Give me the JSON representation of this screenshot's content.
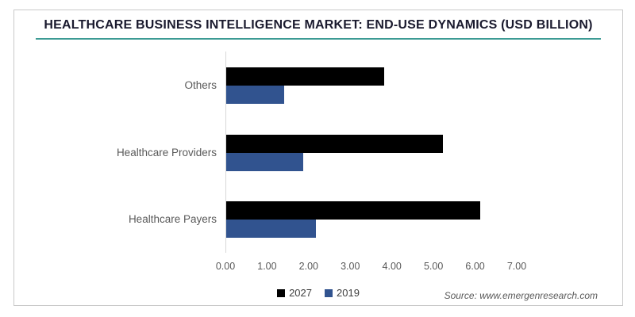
{
  "title": "HEALTHCARE BUSINESS INTELLIGENCE MARKET: END-USE DYNAMICS (USD BILLION)",
  "source": "Source: www.emergenresearch.com",
  "colors": {
    "title_text": "#1a1a2e",
    "title_underline": "#3d9b94",
    "series_2027": "#000000",
    "series_2019": "#31538f",
    "axis_line": "#d9d9d9",
    "muted_text": "#595959",
    "card_border": "#c9c9c9"
  },
  "legend": [
    {
      "label": "2027",
      "color": "#000000"
    },
    {
      "label": "2019",
      "color": "#31538f"
    }
  ],
  "chart_data": {
    "type": "bar",
    "orientation": "horizontal",
    "title": "HEALTHCARE BUSINESS INTELLIGENCE MARKET: END-USE DYNAMICS (USD BILLION)",
    "categories": [
      "Others",
      "Healthcare Providers",
      "Healthcare Payers"
    ],
    "series": [
      {
        "name": "2027",
        "color": "#000000",
        "values": [
          3.8,
          5.2,
          6.1
        ]
      },
      {
        "name": "2019",
        "color": "#31538f",
        "values": [
          1.4,
          1.85,
          2.15
        ]
      }
    ],
    "xlim": [
      0,
      7
    ],
    "x_ticks": [
      "0.00",
      "1.00",
      "2.00",
      "3.00",
      "4.00",
      "5.00",
      "6.00",
      "7.00"
    ],
    "xlabel": "",
    "ylabel": "",
    "grid": false,
    "legend_position": "bottom-center"
  }
}
